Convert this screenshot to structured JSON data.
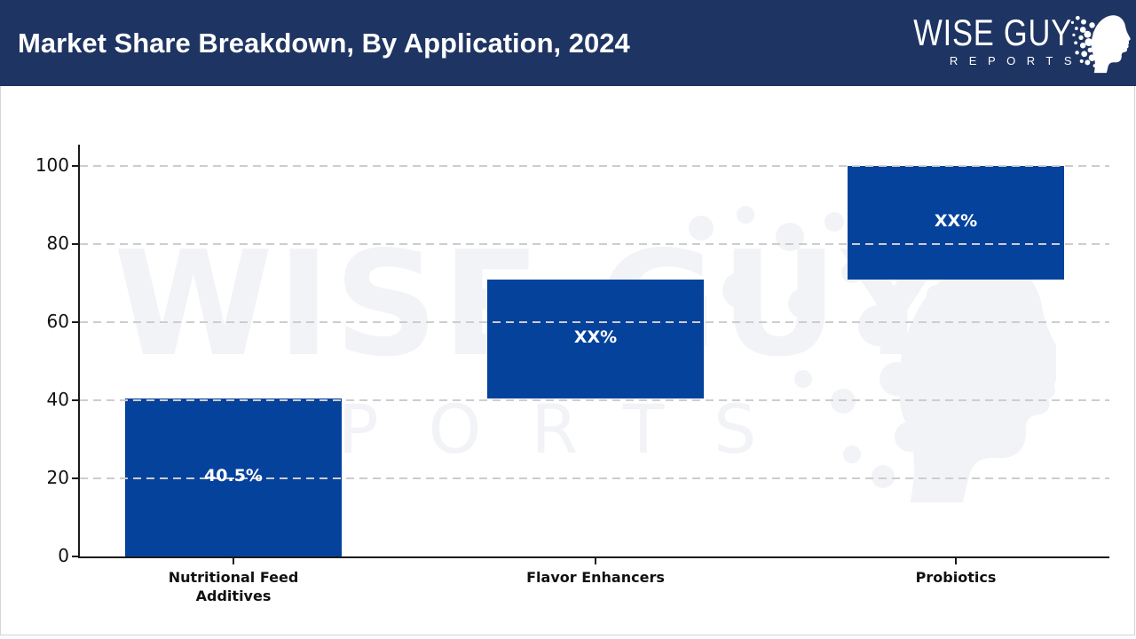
{
  "header": {
    "title": "Market Share Breakdown, By Application, 2024",
    "logo": {
      "wordmark": "WISE GUY",
      "subtext": "REPORTS"
    }
  },
  "watermark": {
    "wordmark": "WISE GUY",
    "subtext": "REPORTS"
  },
  "chart_data": {
    "type": "bar",
    "subtype": "floating_segment_bar",
    "title": "Market Share Breakdown, By Application, 2024",
    "categories": [
      "Nutritional Feed Additives",
      "Flavor Enhancers",
      "Probiotics"
    ],
    "segments": [
      {
        "category": "Nutritional Feed Additives",
        "start": 0,
        "end": 40.5,
        "label": "40.5%"
      },
      {
        "category": "Flavor Enhancers",
        "start": 40.5,
        "end": 71,
        "label": "XX%"
      },
      {
        "category": "Probiotics",
        "start": 71,
        "end": 100,
        "label": "XX%"
      }
    ],
    "yticks": [
      0,
      20,
      40,
      60,
      80,
      100
    ],
    "ylim": [
      0,
      105
    ],
    "xlabel": "",
    "ylabel": "",
    "grid": {
      "axis": "y",
      "style": "dashed",
      "on": true
    },
    "legend": "none",
    "colors": {
      "bar": "#05429c",
      "bar_label": "#ffffff",
      "axis": "#1a1a1a",
      "tick_label": "#111111",
      "grid": "#cdcdcd",
      "header_bg": "#1e3462",
      "watermark": "#f2f3f6",
      "canvas_border": "#d4d4d4"
    }
  }
}
